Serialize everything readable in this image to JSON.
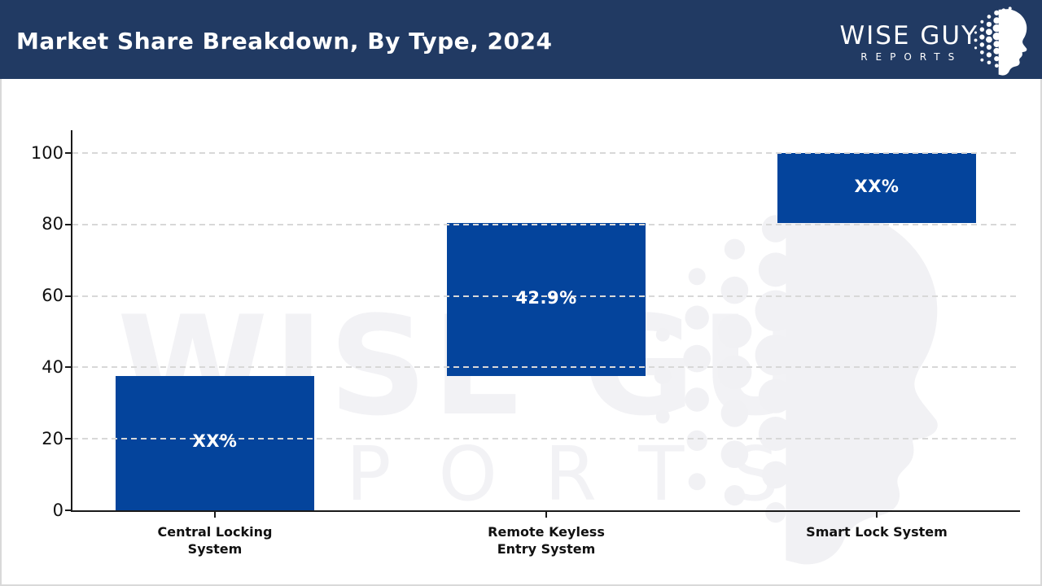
{
  "header": {
    "title": "Market Share Breakdown, By Type, 2024"
  },
  "logo": {
    "name": "WISE GUY",
    "subtitle": "REPORTS"
  },
  "watermark": {
    "line1": "WISE GUY",
    "line2": "REPORTS"
  },
  "colors": {
    "header_bg": "#213A63",
    "bar_blue": "#04449C",
    "grid": "#D8D8D8",
    "axis": "#1A1A1A",
    "watermark": "#F2F2F5",
    "border": "#D9D9D9",
    "bar_label": "#FFFFFF",
    "text": "#111111"
  },
  "chart_data": {
    "type": "bar",
    "subtype": "waterfall",
    "title": "Market Share Breakdown, By Type, 2024",
    "xlabel": "",
    "ylabel": "",
    "ylim": [
      0,
      100
    ],
    "yticks": [
      0,
      20,
      40,
      60,
      80,
      100
    ],
    "grid": "horizontal-dashed",
    "legend": "none",
    "categories": [
      "Central Locking System",
      "Remote Keyless Entry System",
      "Smart Lock System"
    ],
    "category_label_lines": [
      [
        "Central Locking",
        "System"
      ],
      [
        "Remote Keyless",
        "Entry System"
      ],
      [
        "Smart Lock System"
      ]
    ],
    "segments": [
      {
        "category": "Central Locking System",
        "start": 0,
        "end": 37.6,
        "value": 37.6,
        "label": "XX%"
      },
      {
        "category": "Remote Keyless Entry System",
        "start": 37.6,
        "end": 80.5,
        "value": 42.9,
        "label": "42.9%"
      },
      {
        "category": "Smart Lock System",
        "start": 80.5,
        "end": 100,
        "value": 19.5,
        "label": "XX%"
      }
    ]
  }
}
